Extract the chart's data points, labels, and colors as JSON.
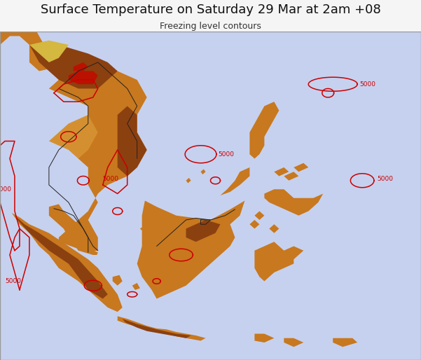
{
  "title": "Surface Temperature on Saturday 29 Mar at 2am +08",
  "subtitle": "Freezing level contours",
  "title_fontsize": 13,
  "subtitle_fontsize": 9,
  "fig_width": 6.01,
  "fig_height": 5.14,
  "dpi": 100,
  "header_bg": "#f5f5f5",
  "ocean_color": [
    0.78,
    0.82,
    0.94
  ],
  "lon_min": 94.0,
  "lon_max": 137.0,
  "lat_min": -11.0,
  "lat_max": 26.5,
  "contour_color": "#cc0000",
  "border_color": "#222222"
}
